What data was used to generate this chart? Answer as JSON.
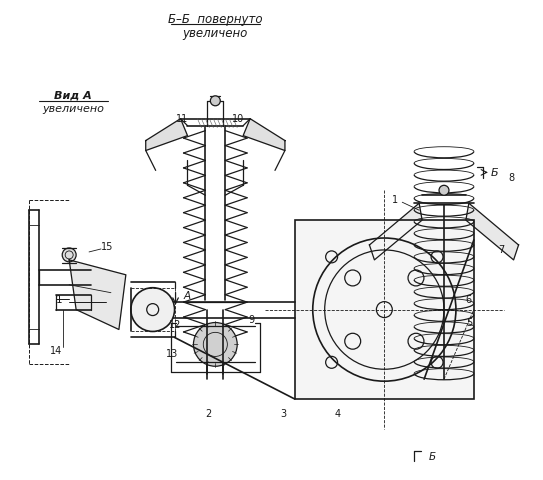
{
  "bg_color": "#ffffff",
  "line_color": "#1a1a1a",
  "figsize": [
    5.43,
    4.8
  ],
  "dpi": 100,
  "title1": "Б–Б  повернуто",
  "title2": "увеличено",
  "vida1": "Вид А",
  "vida2": "увеличено"
}
